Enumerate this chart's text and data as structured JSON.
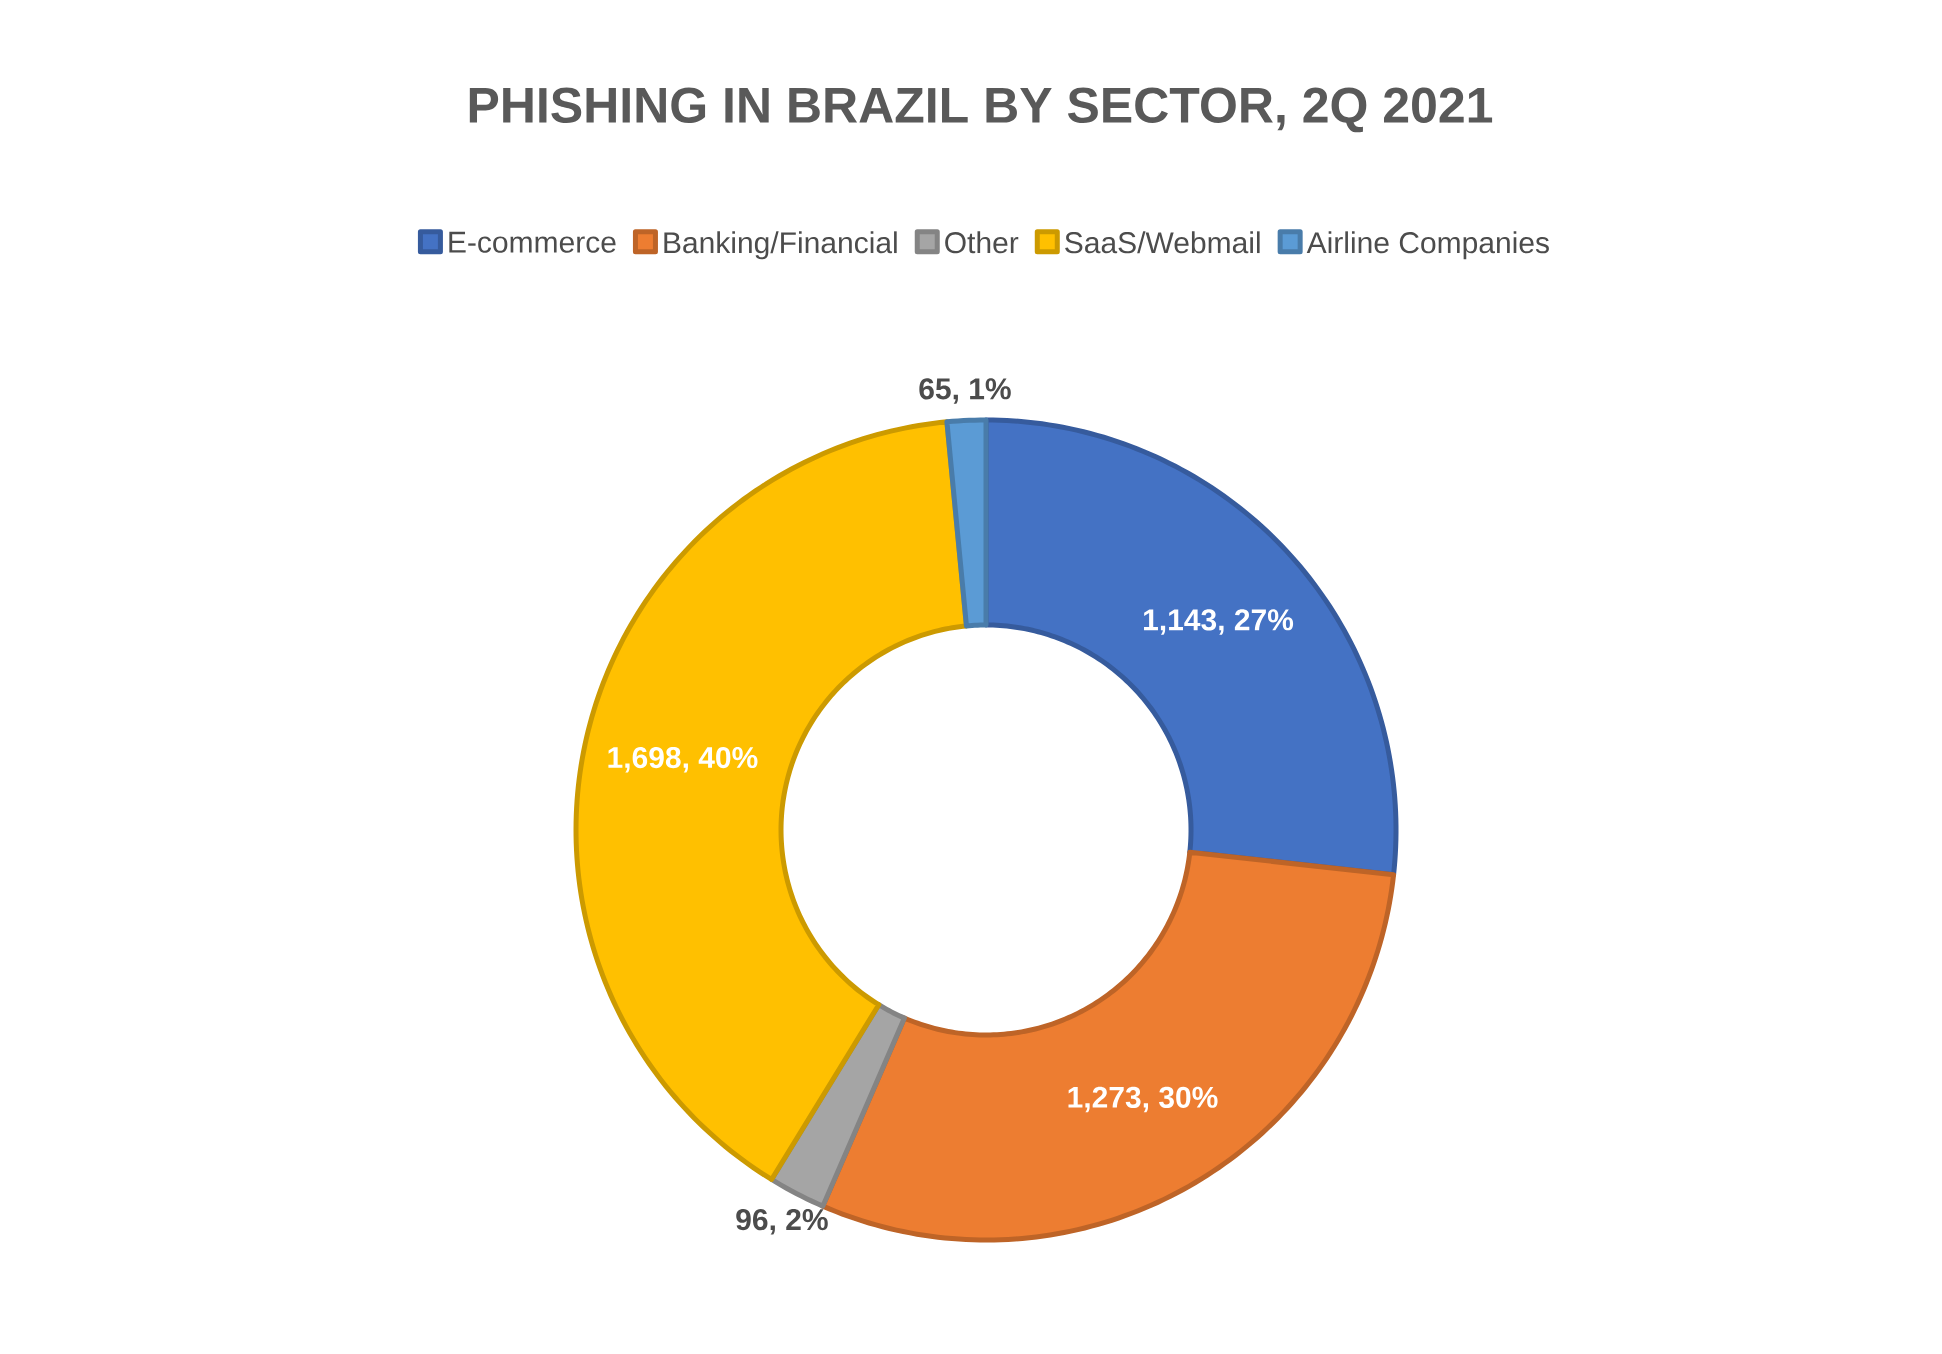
{
  "chart_data": {
    "type": "donut",
    "title": "PHISHING IN BRAZIL BY SECTOR, 2Q 2021",
    "categories": [
      "E-commerce",
      "Banking/Financial",
      "Other",
      "SaaS/Webmail",
      "Airline Companies"
    ],
    "values": [
      1143,
      1273,
      96,
      1698,
      65
    ],
    "colors": [
      "#4472c4",
      "#ed7d31",
      "#a5a5a5",
      "#ffc000",
      "#5b9bd5"
    ],
    "value_labels": [
      "1,143, 27%",
      "1,273, 30%",
      "96, 2%",
      "1,698, 40%",
      "65, 1%"
    ],
    "legend": "top"
  }
}
